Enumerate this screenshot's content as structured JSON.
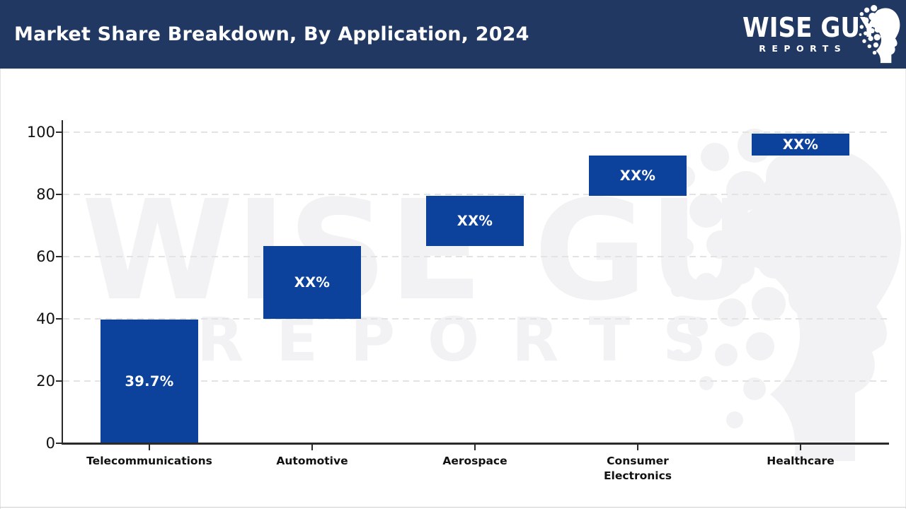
{
  "header": {
    "title": "Market Share Breakdown, By Application, 2024",
    "logo": {
      "line1": "WISE GUY",
      "line2": "REPORTS"
    }
  },
  "watermark": {
    "line1": "WISE GUY",
    "line2": "REPORTS"
  },
  "chart_data": {
    "type": "bar",
    "subtype": "waterfall-floating-bars",
    "title": "Market Share Breakdown, By Application, 2024",
    "xlabel": "",
    "ylabel": "",
    "ylim": [
      0,
      105
    ],
    "yticks": [
      0,
      20,
      40,
      60,
      80,
      100
    ],
    "grid": "horizontal-dashed",
    "legend": "none",
    "bar_color": "#0d429c",
    "label_color": "#ffffff",
    "categories": [
      "Telecommunications",
      "Automotive",
      "Aerospace",
      "Consumer\nElectronics",
      "Healthcare"
    ],
    "bars": [
      {
        "category": "Telecommunications",
        "start": 0,
        "end": 39.7,
        "label": "39.7%"
      },
      {
        "category": "Automotive",
        "start": 40,
        "end": 63.5,
        "label": "XX%"
      },
      {
        "category": "Aerospace",
        "start": 63.5,
        "end": 79.5,
        "label": "XX%"
      },
      {
        "category": "Consumer Electronics",
        "start": 79.5,
        "end": 92.5,
        "label": "XX%"
      },
      {
        "category": "Healthcare",
        "start": 92.5,
        "end": 99.5,
        "label": "XX%"
      }
    ]
  },
  "colors": {
    "header_bg": "#213863",
    "bar": "#0d429c",
    "watermark": "#f2f2f4",
    "grid": "#e3e3e3",
    "axis": "#2a2a2a"
  }
}
